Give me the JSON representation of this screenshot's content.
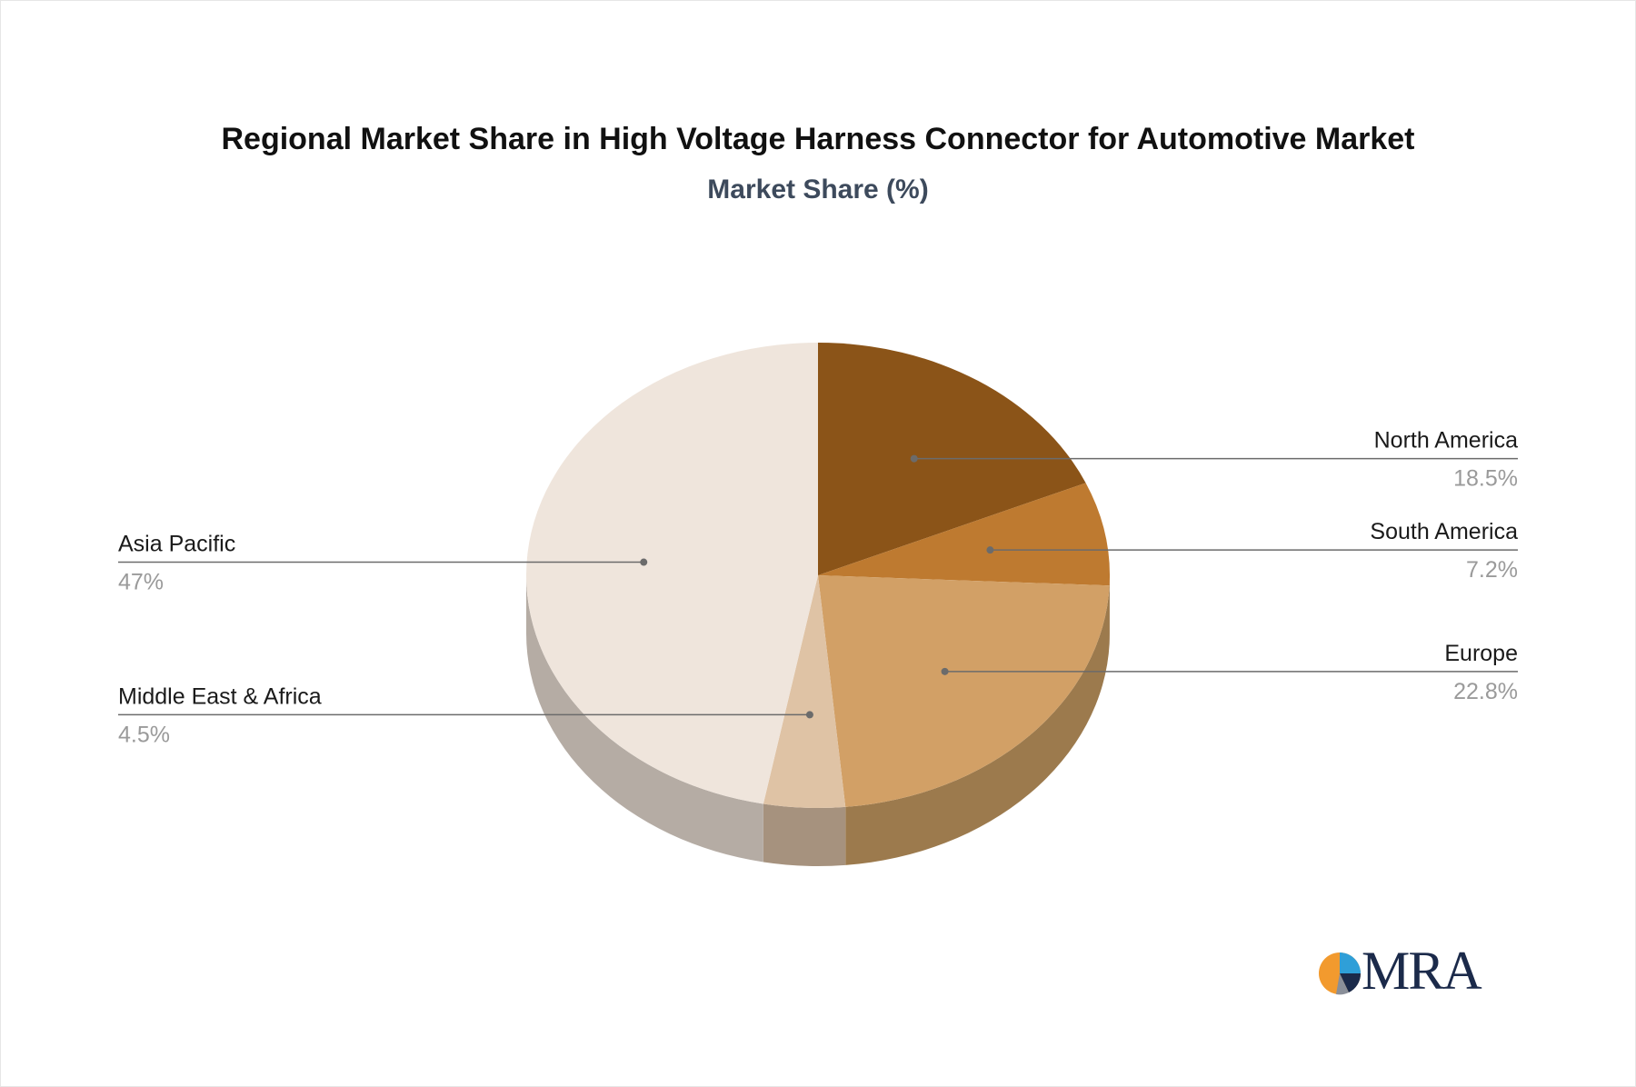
{
  "chart_data": {
    "type": "pie",
    "title": "Regional Market Share in High Voltage Harness Connector for Automotive Market",
    "subtitle": "Market Share (%)",
    "slices": [
      {
        "name": "North America",
        "value": 18.5,
        "label": "18.5%",
        "color": "#8b5418",
        "side_color": "#6e4213",
        "label_side": "right"
      },
      {
        "name": "South America",
        "value": 7.2,
        "label": "7.2%",
        "color": "#be7a30",
        "side_color": "#966026",
        "label_side": "right"
      },
      {
        "name": "Europe",
        "value": 22.8,
        "label": "22.8%",
        "color": "#d2a066",
        "side_color": "#9c7a4d",
        "label_side": "right"
      },
      {
        "name": "Middle East & Africa",
        "value": 4.5,
        "label": "4.5%",
        "color": "#dfc3a5",
        "side_color": "#a6927e",
        "label_side": "left"
      },
      {
        "name": "Asia Pacific",
        "value": 47,
        "label": "47%",
        "color": "#efe5dc",
        "side_color": "#b5aca4",
        "label_side": "left"
      }
    ],
    "legend": "none"
  },
  "branding": {
    "logo_text": "MRA"
  }
}
